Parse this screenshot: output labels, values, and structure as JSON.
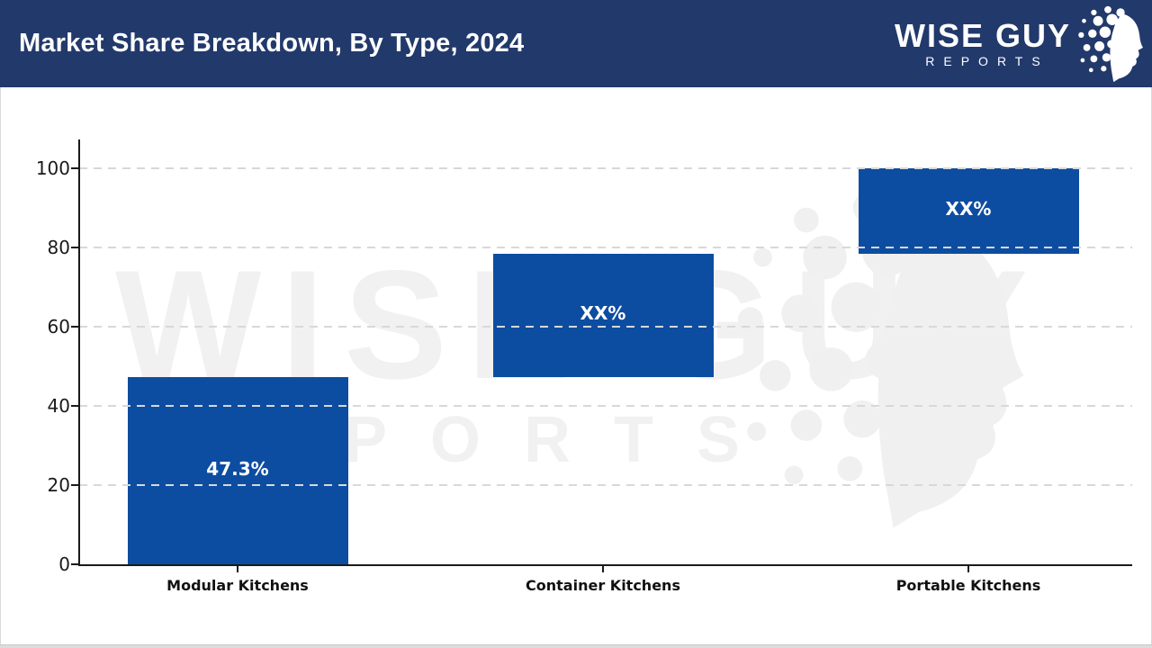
{
  "header": {
    "title": "Market Share Breakdown, By Type, 2024",
    "bg_color": "#22396b",
    "logo": {
      "line1": "WISE GUY",
      "line2": "REPORTS"
    }
  },
  "watermark": {
    "line1": "WISE GUY",
    "line2": "REPORTS"
  },
  "chart_data": {
    "type": "bar",
    "subtype": "waterfall-breakdown",
    "title": "Market Share Breakdown, By Type, 2024",
    "categories": [
      "Modular Kitchens",
      "Container Kitchens",
      "Portable Kitchens"
    ],
    "segments": [
      {
        "category": "Modular Kitchens",
        "start": 0,
        "end": 47.3,
        "label": "47.3%"
      },
      {
        "category": "Container Kitchens",
        "start": 47.3,
        "end": 78.5,
        "label": "XX%"
      },
      {
        "category": "Portable Kitchens",
        "start": 78.5,
        "end": 100,
        "label": "XX%"
      }
    ],
    "y_ticks": [
      0,
      20,
      40,
      60,
      80,
      100
    ],
    "ylim": [
      0,
      107
    ],
    "xlabel": "",
    "ylabel": "",
    "grid": "dashed-horizontal",
    "legend": "none",
    "bar_color": "#0d4da1",
    "gridline_color": "#d8d8d8",
    "axis_color": "#1a1a1a"
  }
}
